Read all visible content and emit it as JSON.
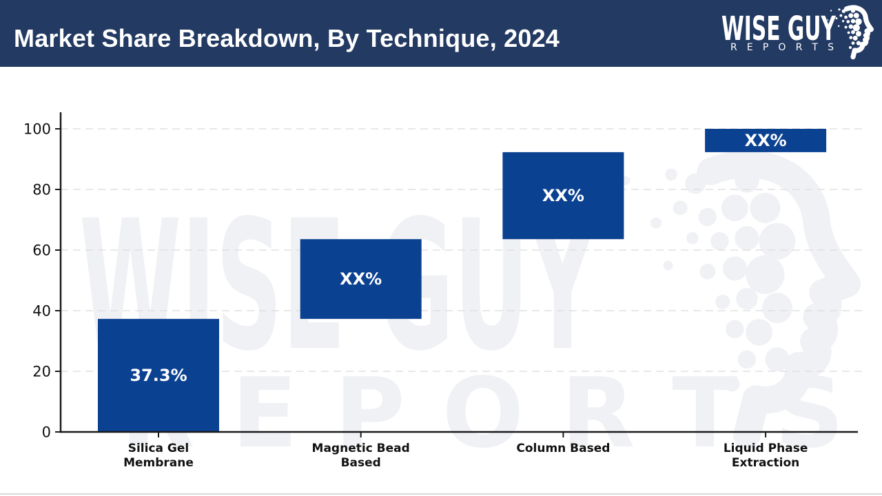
{
  "header": {
    "title": "Market Share Breakdown, By Technique, 2024",
    "logo": {
      "wordmark": "WISE GUY",
      "subtitle": "R E P O R T S",
      "icon": "dotted-head-profile-icon"
    }
  },
  "watermark": {
    "line1": "WISE GUY",
    "line2": "R E P O R T S",
    "icon": "dotted-head-profile-icon"
  },
  "theme": {
    "header_bg": "#233a63",
    "header_text": "#ffffff",
    "watermark_color": "#f0f1f4",
    "divider_color": "#d9d9d9",
    "background": "#ffffff"
  },
  "chart_data": {
    "type": "bar",
    "subtype": "waterfall",
    "title": "Market Share Breakdown, By Technique, 2024",
    "categories": [
      "Silica Gel Membrane",
      "Magnetic Bead Based",
      "Column Based",
      "Liquid Phase Extraction"
    ],
    "category_label_lines": [
      [
        "Silica Gel",
        "Membrane"
      ],
      [
        "Magnetic Bead",
        "Based"
      ],
      [
        "Column Based"
      ],
      [
        "Liquid Phase",
        "Extraction"
      ]
    ],
    "segments": [
      {
        "category": "Silica Gel Membrane",
        "start": 0,
        "end": 37.3,
        "label": "37.3%"
      },
      {
        "category": "Magnetic Bead Based",
        "start": 37.3,
        "end": 63.6,
        "label": "XX%"
      },
      {
        "category": "Column Based",
        "start": 63.6,
        "end": 92.3,
        "label": "XX%"
      },
      {
        "category": "Liquid Phase Extraction",
        "start": 92.3,
        "end": 100,
        "label": "XX%"
      }
    ],
    "y_ticks": [
      0,
      20,
      40,
      60,
      80,
      100
    ],
    "ylim": [
      0,
      105
    ],
    "xlabel": "",
    "ylabel": "",
    "grid": "horizontal-dashed",
    "legend": "none",
    "colors": {
      "bar": "#0b4191",
      "bar_label": "#ffffff",
      "grid": "#e0e0e0",
      "axis": "#1a1a1a",
      "tick_label": "#111111"
    }
  }
}
